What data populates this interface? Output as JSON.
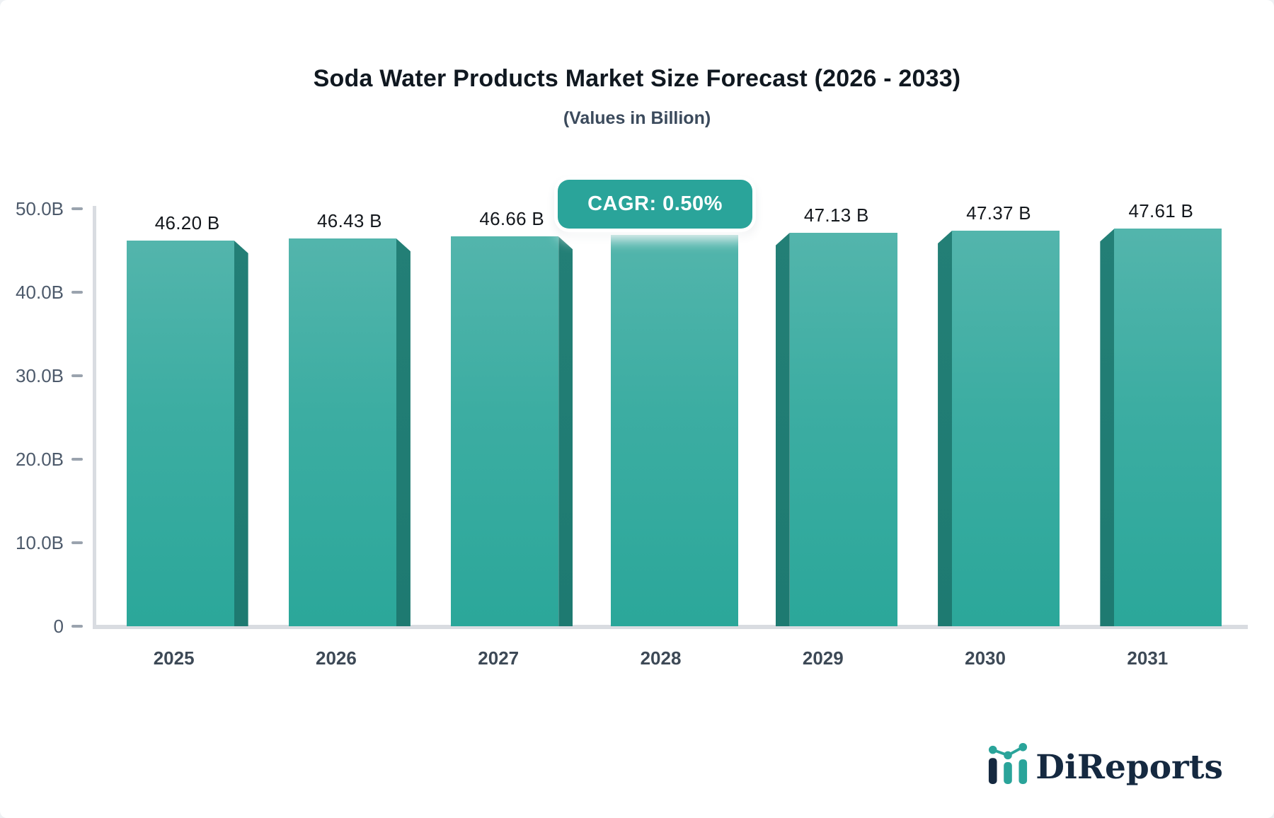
{
  "header": {
    "title": "Soda Water Products Market Size Forecast (2026 - 2033)",
    "subtitle": "(Values in Billion)"
  },
  "badge": {
    "label": "CAGR: 0.50%"
  },
  "brand": {
    "name": "DiReports",
    "icon": "mini-bar-line-chart-icon"
  },
  "colors": {
    "bar_face_top": "#53b5ac",
    "bar_face_bottom": "#2ba79a",
    "bar_side_dark": "#1e7a71",
    "badge_bg": "#2aa49a",
    "brand_navy": "#152940",
    "axis_line": "#d9dce1",
    "tick": "#9aa3ae",
    "y_label": "#4d5a6b",
    "x_label": "#3d4956"
  },
  "chart_data": {
    "type": "bar",
    "title": "Soda Water Products Market Size Forecast (2026 - 2033)",
    "subtitle": "(Values in Billion)",
    "xlabel": "",
    "ylabel": "",
    "ylim": [
      0,
      50
    ],
    "grid": false,
    "cagr_label": "CAGR: 0.50%",
    "categories": [
      "2025",
      "2026",
      "2027",
      "2028",
      "2029",
      "2030",
      "2031"
    ],
    "values": [
      46.2,
      46.43,
      46.66,
      46.9,
      47.13,
      47.37,
      47.61
    ],
    "value_labels": [
      "46.20 B",
      "46.43 B",
      "46.66 B",
      "",
      "47.13 B",
      "47.37 B",
      "47.61 B"
    ],
    "value_label_note": "2028 data label is covered by the CAGR badge; its value is estimated from bar height",
    "bar_sides": [
      "right",
      "right",
      "right",
      "none",
      "left",
      "left",
      "left"
    ],
    "yticks": [
      {
        "label": "50.0B",
        "value": 50
      },
      {
        "label": "40.0B",
        "value": 40
      },
      {
        "label": "30.0B",
        "value": 30
      },
      {
        "label": "20.0B",
        "value": 20
      },
      {
        "label": "10.0B",
        "value": 10
      },
      {
        "label": "0",
        "value": 0
      }
    ]
  }
}
